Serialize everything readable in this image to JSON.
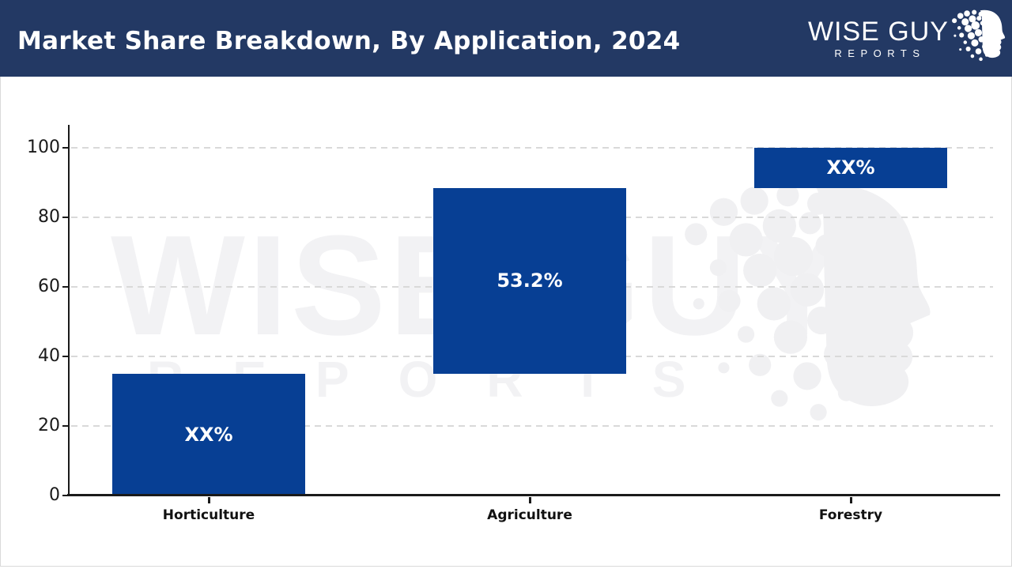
{
  "header": {
    "title": "Market Share Breakdown, By Application, 2024",
    "logo": {
      "wordmark": "WISE GUY",
      "subtext": "REPORTS"
    }
  },
  "chart_data": {
    "type": "bar",
    "subtype": "waterfall",
    "title": "Market Share Breakdown, By Application, 2024",
    "xlabel": "",
    "ylabel": "",
    "categories": [
      "Horticulture",
      "Agriculture",
      "Forestry"
    ],
    "segments": [
      {
        "category": "Horticulture",
        "start": 0,
        "end": 35,
        "label": "XX%"
      },
      {
        "category": "Agriculture",
        "start": 35,
        "end": 88.2,
        "label": "53.2%"
      },
      {
        "category": "Forestry",
        "start": 88.2,
        "end": 100,
        "label": "XX%"
      }
    ],
    "yticks": [
      0,
      20,
      40,
      60,
      80,
      100
    ],
    "ylim": [
      0,
      106
    ],
    "grid": "dashed horizontal gridlines",
    "legend": "none",
    "bar_color": "#073f94",
    "label_color": "#ffffff"
  },
  "watermark": {
    "line1": "WISE GUY",
    "line2": "REPORTS"
  },
  "icons": {
    "logo_face": "dotted-head-profile",
    "watermark_face": "dotted-head-profile"
  },
  "colors": {
    "header_bg": "#233964",
    "bar_blue": "#073f94",
    "axis_black": "#1a1a1a",
    "grid_gray": "#d9d9d9",
    "watermark_gray": "#f2f2f4",
    "text_white": "#ffffff"
  }
}
